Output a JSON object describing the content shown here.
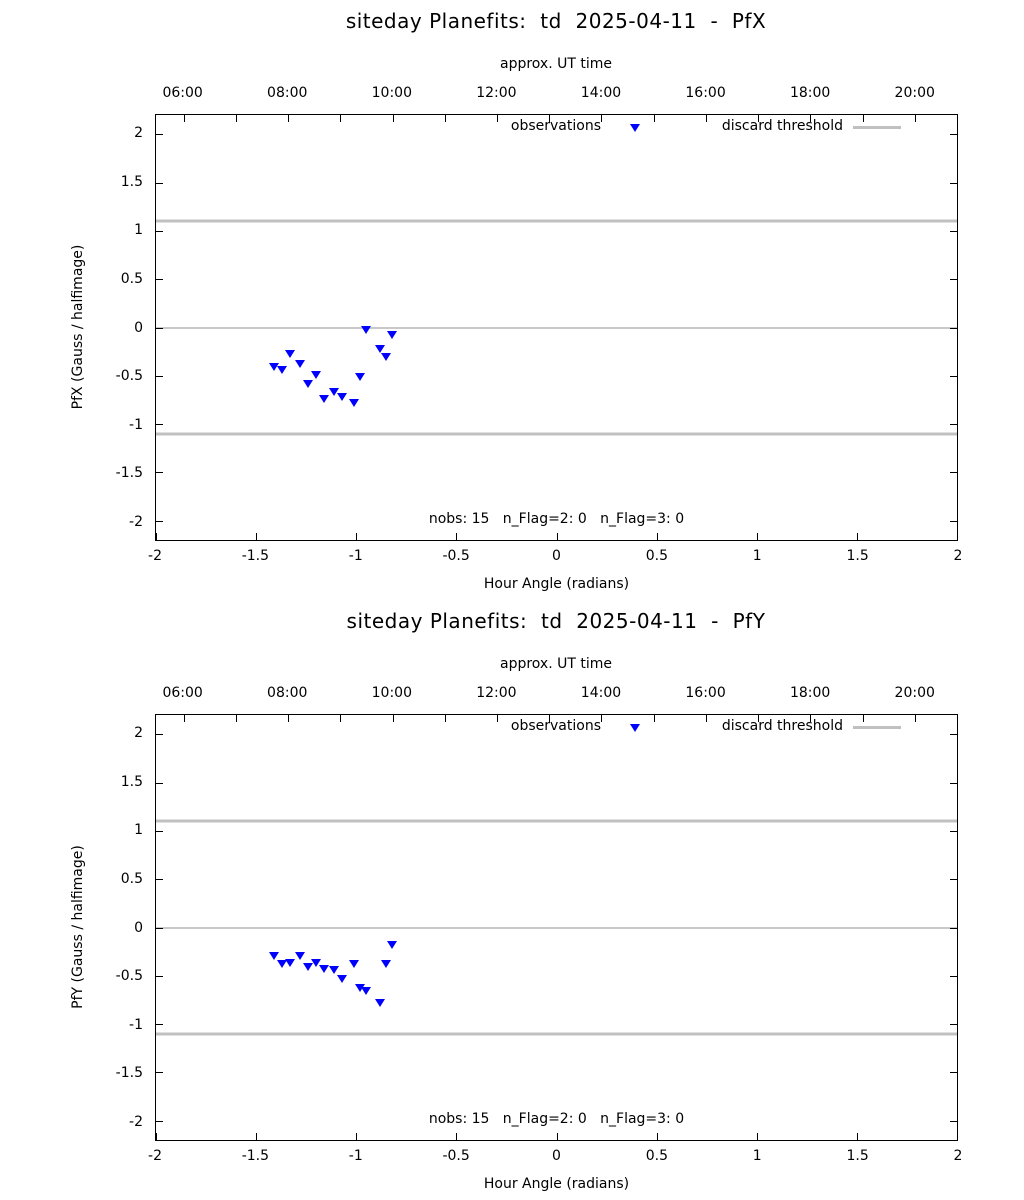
{
  "colors": {
    "marker": "#0000ff",
    "threshold": "#c0c0c0",
    "zero_line": "#c8c8c8",
    "axis": "#000000",
    "background": "#ffffff",
    "text": "#000000"
  },
  "chart_data": [
    {
      "type": "scatter",
      "title": "siteday Planefits:  td  2025-04-11  -  PfX",
      "x2label": "approx. UT time",
      "xlabel": "Hour Angle (radians)",
      "ylabel": "PfX (Gauss / halfimage)",
      "annotation": "nobs: 15   n_Flag=2: 0   n_Flag=3: 0",
      "legend": [
        {
          "label": "observations",
          "marker": "triangle-down"
        },
        {
          "label": "discard threshold",
          "marker": "line"
        }
      ],
      "legend_position": "top-inside",
      "grid": "zero-line-only",
      "xlim": [
        -2,
        2
      ],
      "ylim": [
        -2.2,
        2.2
      ],
      "xticks": [
        -2,
        -1.5,
        -1,
        -0.5,
        0,
        0.5,
        1,
        1.5,
        2
      ],
      "yticks": [
        -2,
        -1.5,
        -1,
        -0.5,
        0,
        0.5,
        1,
        1.5,
        2
      ],
      "x2ticks": [
        {
          "f": 0.0345,
          "label": "06:00"
        },
        {
          "f": 0.0997,
          "label": ""
        },
        {
          "f": 0.1649,
          "label": "08:00"
        },
        {
          "f": 0.2301,
          "label": ""
        },
        {
          "f": 0.2953,
          "label": "10:00"
        },
        {
          "f": 0.3605,
          "label": ""
        },
        {
          "f": 0.4257,
          "label": "12:00"
        },
        {
          "f": 0.4909,
          "label": ""
        },
        {
          "f": 0.5561,
          "label": "14:00"
        },
        {
          "f": 0.6213,
          "label": ""
        },
        {
          "f": 0.6865,
          "label": "16:00"
        },
        {
          "f": 0.7517,
          "label": ""
        },
        {
          "f": 0.8169,
          "label": "18:00"
        },
        {
          "f": 0.8821,
          "label": ""
        },
        {
          "f": 0.9473,
          "label": "20:00"
        }
      ],
      "thresholds": [
        1.1,
        -1.1
      ],
      "zero_line": 0,
      "points": [
        [
          -1.41,
          -0.41
        ],
        [
          -1.37,
          -0.44
        ],
        [
          -1.33,
          -0.27
        ],
        [
          -1.28,
          -0.38
        ],
        [
          -1.24,
          -0.59
        ],
        [
          -1.2,
          -0.49
        ],
        [
          -1.16,
          -0.74
        ],
        [
          -1.11,
          -0.67
        ],
        [
          -1.07,
          -0.72
        ],
        [
          -1.01,
          -0.78
        ],
        [
          -0.98,
          -0.51
        ],
        [
          -0.95,
          -0.03
        ],
        [
          -0.88,
          -0.22
        ],
        [
          -0.85,
          -0.31
        ],
        [
          -0.82,
          -0.08
        ]
      ]
    },
    {
      "type": "scatter",
      "title": "siteday Planefits:  td  2025-04-11  -  PfY",
      "x2label": "approx. UT time",
      "xlabel": "Hour Angle (radians)",
      "ylabel": "PfY (Gauss / halfimage)",
      "annotation": "nobs: 15   n_Flag=2: 0   n_Flag=3: 0",
      "legend": [
        {
          "label": "observations",
          "marker": "triangle-down"
        },
        {
          "label": "discard threshold",
          "marker": "line"
        }
      ],
      "legend_position": "top-inside",
      "grid": "zero-line-only",
      "xlim": [
        -2,
        2
      ],
      "ylim": [
        -2.2,
        2.2
      ],
      "xticks": [
        -2,
        -1.5,
        -1,
        -0.5,
        0,
        0.5,
        1,
        1.5,
        2
      ],
      "yticks": [
        -2,
        -1.5,
        -1,
        -0.5,
        0,
        0.5,
        1,
        1.5,
        2
      ],
      "x2ticks": [
        {
          "f": 0.0345,
          "label": "06:00"
        },
        {
          "f": 0.0997,
          "label": ""
        },
        {
          "f": 0.1649,
          "label": "08:00"
        },
        {
          "f": 0.2301,
          "label": ""
        },
        {
          "f": 0.2953,
          "label": "10:00"
        },
        {
          "f": 0.3605,
          "label": ""
        },
        {
          "f": 0.4257,
          "label": "12:00"
        },
        {
          "f": 0.4909,
          "label": ""
        },
        {
          "f": 0.5561,
          "label": "14:00"
        },
        {
          "f": 0.6213,
          "label": ""
        },
        {
          "f": 0.6865,
          "label": "16:00"
        },
        {
          "f": 0.7517,
          "label": ""
        },
        {
          "f": 0.8169,
          "label": "18:00"
        },
        {
          "f": 0.8821,
          "label": ""
        },
        {
          "f": 0.9473,
          "label": "20:00"
        }
      ],
      "thresholds": [
        1.1,
        -1.1
      ],
      "zero_line": 0,
      "points": [
        [
          -1.41,
          -0.29
        ],
        [
          -1.37,
          -0.38
        ],
        [
          -1.33,
          -0.37
        ],
        [
          -1.28,
          -0.29
        ],
        [
          -1.24,
          -0.41
        ],
        [
          -1.2,
          -0.37
        ],
        [
          -1.16,
          -0.43
        ],
        [
          -1.11,
          -0.44
        ],
        [
          -1.07,
          -0.53
        ],
        [
          -1.01,
          -0.38
        ],
        [
          -0.98,
          -0.63
        ],
        [
          -0.95,
          -0.66
        ],
        [
          -0.88,
          -0.78
        ],
        [
          -0.85,
          -0.38
        ],
        [
          -0.82,
          -0.18
        ]
      ]
    }
  ]
}
